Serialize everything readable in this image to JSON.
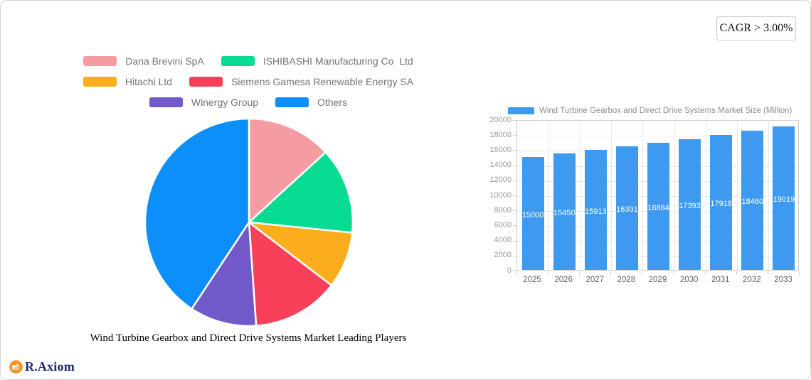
{
  "badge": {
    "label": "CAGR > 3.00%"
  },
  "logo": {
    "text": "R.Axiom",
    "icon": "chart-pen-icon",
    "icon_color": "#F7941E",
    "text_color": "#23286b"
  },
  "chart_data": [
    {
      "type": "pie",
      "title": "Wind Turbine Gearbox and Direct Drive Systems Market Leading Players",
      "legend_position": "top",
      "start_angle_deg": 0,
      "clockwise": true,
      "slices": [
        {
          "label": "Dana Brevini SpA",
          "value": 13.2,
          "color": "#F59CA3"
        },
        {
          "label": "ISHIBASHI Manufacturing Co  Ltd",
          "value": 13.4,
          "color": "#08DC92"
        },
        {
          "label": "Hitachi Ltd",
          "value": 8.8,
          "color": "#FBAD1B"
        },
        {
          "label": "Siemens Gamesa Renewable Energy SA",
          "value": 13.5,
          "color": "#F8405B"
        },
        {
          "label": "Winergy Group",
          "value": 10.4,
          "color": "#7159CA"
        },
        {
          "label": "Others",
          "value": 40.7,
          "color": "#0C8FF8"
        }
      ]
    },
    {
      "type": "bar",
      "legend_label": "Wind Turbine Gearbox and Direct Drive Systems Market Size (Million)",
      "categories": [
        "2025",
        "2026",
        "2027",
        "2028",
        "2029",
        "2030",
        "2031",
        "2032",
        "2033"
      ],
      "values": [
        15000,
        15450,
        15913,
        16391,
        16884,
        17393,
        17918,
        18460,
        19019
      ],
      "ylim": [
        0,
        20000
      ],
      "yticks": [
        0,
        2000,
        4000,
        6000,
        8000,
        10000,
        12000,
        14000,
        16000,
        18000,
        20000
      ],
      "bar_color": "#3D9AEF",
      "value_label_color": "#ffffff",
      "grid": true,
      "legend_position": "top"
    }
  ]
}
